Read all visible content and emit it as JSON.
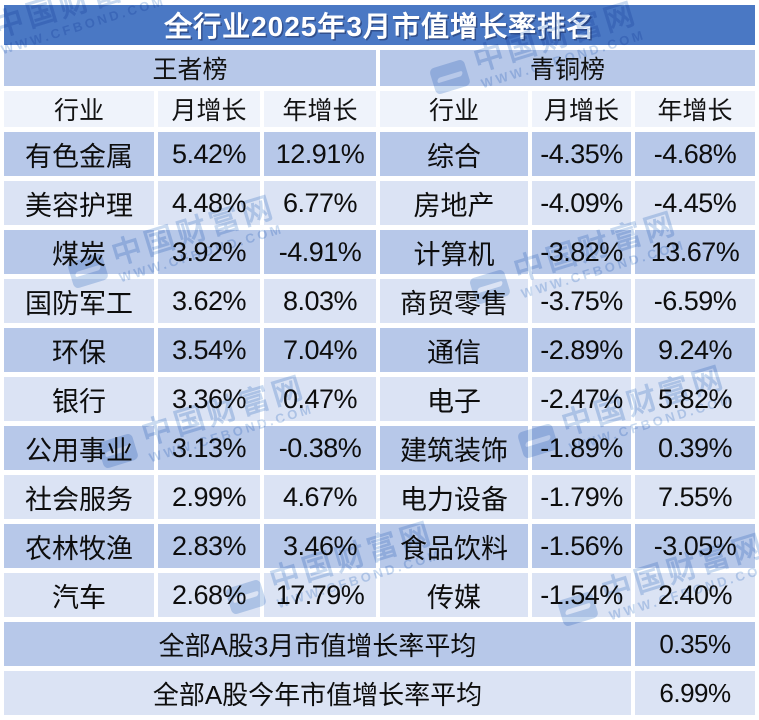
{
  "title": "全行业2025年3月市值增长率排名",
  "left_board": {
    "name": "王者榜",
    "headers": [
      "行业",
      "月增长",
      "年增长"
    ],
    "rows": [
      {
        "industry": "有色金属",
        "month": "5.42%",
        "year": "12.91%"
      },
      {
        "industry": "美容护理",
        "month": "4.48%",
        "year": "6.77%"
      },
      {
        "industry": "煤炭",
        "month": "3.92%",
        "year": "-4.91%"
      },
      {
        "industry": "国防军工",
        "month": "3.62%",
        "year": "8.03%"
      },
      {
        "industry": "环保",
        "month": "3.54%",
        "year": "7.04%"
      },
      {
        "industry": "银行",
        "month": "3.36%",
        "year": "0.47%"
      },
      {
        "industry": "公用事业",
        "month": "3.13%",
        "year": "-0.38%"
      },
      {
        "industry": "社会服务",
        "month": "2.99%",
        "year": "4.67%"
      },
      {
        "industry": "农林牧渔",
        "month": "2.83%",
        "year": "3.46%"
      },
      {
        "industry": "汽车",
        "month": "2.68%",
        "year": "17.79%"
      }
    ]
  },
  "right_board": {
    "name": "青铜榜",
    "headers": [
      "行业",
      "月增长",
      "年增长"
    ],
    "rows": [
      {
        "industry": "综合",
        "month": "-4.35%",
        "year": "-4.68%"
      },
      {
        "industry": "房地产",
        "month": "-4.09%",
        "year": "-4.45%"
      },
      {
        "industry": "计算机",
        "month": "-3.82%",
        "year": "13.67%"
      },
      {
        "industry": "商贸零售",
        "month": "-3.75%",
        "year": "-6.59%"
      },
      {
        "industry": "通信",
        "month": "-2.89%",
        "year": "9.24%"
      },
      {
        "industry": "电子",
        "month": "-2.47%",
        "year": "5.82%"
      },
      {
        "industry": "建筑装饰",
        "month": "-1.89%",
        "year": "0.39%"
      },
      {
        "industry": "电力设备",
        "month": "-1.79%",
        "year": "7.55%"
      },
      {
        "industry": "食品饮料",
        "month": "-1.56%",
        "year": "-3.05%"
      },
      {
        "industry": "传媒",
        "month": "-1.54%",
        "year": "2.40%"
      }
    ]
  },
  "summary_rows": [
    {
      "label": "全部A股3月市值增长率平均",
      "value": "0.35%"
    },
    {
      "label": "全部A股今年市值增长率平均",
      "value": "6.99%"
    }
  ],
  "watermark": {
    "name": "中国财富网",
    "url": "WWW.CFBOND.COM"
  },
  "colors": {
    "title_bg": "#4a78c4",
    "title_text": "#ffffff",
    "band_bg": "#b7c8e9",
    "header_bg": "#eff3fb",
    "row_dark": "#b7c8e9",
    "row_light": "#dbe3f4",
    "text": "#111111",
    "watermark": "#5b8fd0"
  },
  "chart_data": {
    "type": "table",
    "title": "全行业2025年3月市值增长率排名",
    "groups": [
      {
        "name": "王者榜",
        "columns": [
          "行业",
          "月增长",
          "年增长"
        ],
        "rows": [
          [
            "有色金属",
            "5.42%",
            "12.91%"
          ],
          [
            "美容护理",
            "4.48%",
            "6.77%"
          ],
          [
            "煤炭",
            "3.92%",
            "-4.91%"
          ],
          [
            "国防军工",
            "3.62%",
            "8.03%"
          ],
          [
            "环保",
            "3.54%",
            "7.04%"
          ],
          [
            "银行",
            "3.36%",
            "0.47%"
          ],
          [
            "公用事业",
            "3.13%",
            "-0.38%"
          ],
          [
            "社会服务",
            "2.99%",
            "4.67%"
          ],
          [
            "农林牧渔",
            "2.83%",
            "3.46%"
          ],
          [
            "汽车",
            "2.68%",
            "17.79%"
          ]
        ]
      },
      {
        "name": "青铜榜",
        "columns": [
          "行业",
          "月增长",
          "年增长"
        ],
        "rows": [
          [
            "综合",
            "-4.35%",
            "-4.68%"
          ],
          [
            "房地产",
            "-4.09%",
            "-4.45%"
          ],
          [
            "计算机",
            "-3.82%",
            "13.67%"
          ],
          [
            "商贸零售",
            "-3.75%",
            "-6.59%"
          ],
          [
            "通信",
            "-2.89%",
            "9.24%"
          ],
          [
            "电子",
            "-2.47%",
            "5.82%"
          ],
          [
            "建筑装饰",
            "-1.89%",
            "0.39%"
          ],
          [
            "电力设备",
            "-1.79%",
            "7.55%"
          ],
          [
            "食品饮料",
            "-1.56%",
            "-3.05%"
          ],
          [
            "传媒",
            "-1.54%",
            "2.40%"
          ]
        ]
      }
    ],
    "summary": [
      {
        "label": "全部A股3月市值增长率平均",
        "value": "0.35%"
      },
      {
        "label": "全部A股今年市值增长率平均",
        "value": "6.99%"
      }
    ]
  }
}
